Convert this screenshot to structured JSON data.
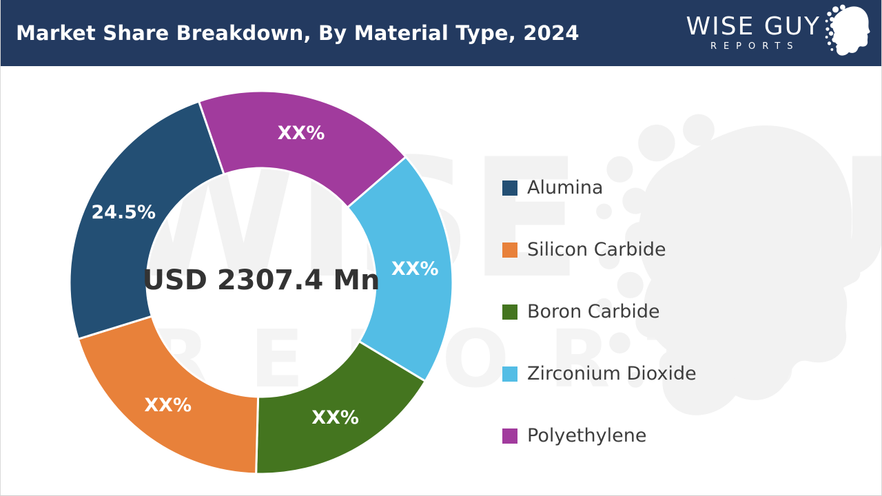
{
  "header": {
    "title": "Market Share Breakdown, By Material Type, 2024",
    "bg_color": "#233A60",
    "logo": {
      "wordmark": "WISE GUY",
      "subtext": "REPORTS"
    }
  },
  "watermark": {
    "wordmark": "WISE GUY",
    "subtext": "REPORTS"
  },
  "chart_data": {
    "type": "pie",
    "subtype": "donut",
    "title": "Market Share Breakdown, By Material Type, 2024",
    "center_label": "USD 2307.4 Mn",
    "start_angle_deg": -19,
    "legend_position": "right",
    "segments_clockwise": [
      {
        "name": "Polyethylene",
        "label": "XX%",
        "value_pct": 18.9,
        "color": "#A13B9D"
      },
      {
        "name": "Zirconium Dioxide",
        "label": "XX%",
        "value_pct": 20.0,
        "color": "#53BDE5"
      },
      {
        "name": "Boron Carbide",
        "label": "XX%",
        "value_pct": 16.8,
        "color": "#44751F"
      },
      {
        "name": "Silicon Carbide",
        "label": "XX%",
        "value_pct": 19.8,
        "color": "#E8813A"
      },
      {
        "name": "Alumina",
        "label": "24.5%",
        "value_pct": 24.5,
        "color": "#234F74"
      }
    ],
    "legend": [
      {
        "label": "Alumina",
        "color": "#234F74"
      },
      {
        "label": "Silicon Carbide",
        "color": "#E8813A"
      },
      {
        "label": "Boron Carbide",
        "color": "#44751F"
      },
      {
        "label": "Zirconium Dioxide",
        "color": "#53BDE5"
      },
      {
        "label": "Polyethylene",
        "color": "#A13B9D"
      }
    ]
  }
}
